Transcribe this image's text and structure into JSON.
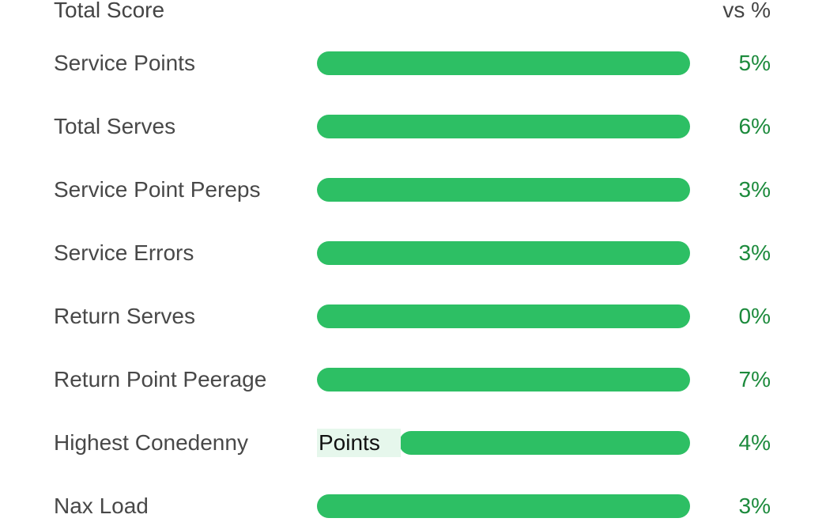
{
  "header": {
    "title": "Total Score",
    "compare": "vs %"
  },
  "rows": [
    {
      "label": "Service Points",
      "value": "5%"
    },
    {
      "label": "Total Serves",
      "value": "6%"
    },
    {
      "label": "Service Point Pereps",
      "value": "3%"
    },
    {
      "label": "Service Errors",
      "value": "3%"
    },
    {
      "label": "Return Serves",
      "value": "0%"
    },
    {
      "label": "Return Point Peerage",
      "value": "7%"
    },
    {
      "label": "Highest Conedenny",
      "tag": "Points",
      "value": "4%"
    },
    {
      "label": "Nax Load",
      "value": "3%"
    }
  ]
}
